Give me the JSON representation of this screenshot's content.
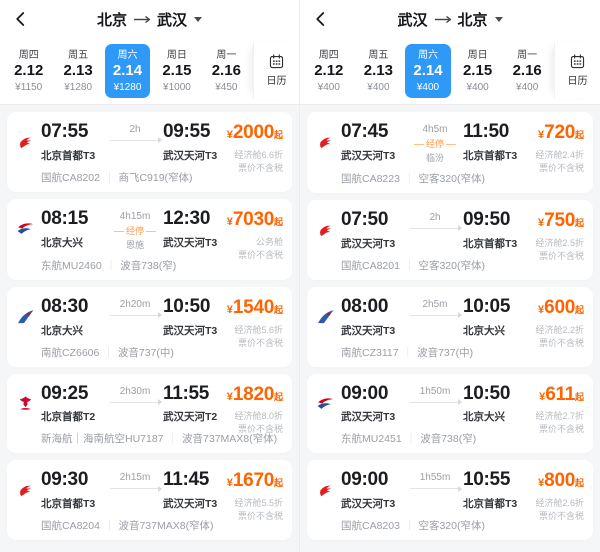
{
  "ui": {
    "separator": "｜",
    "accent_blue": "#2f99f8",
    "price_orange": "#ff6400",
    "stopover_orange": "#ff9b47"
  },
  "panels": [
    {
      "header": {
        "from": "北京",
        "to": "武汉"
      },
      "calendar": {
        "label": "日历"
      },
      "date_tabs": [
        {
          "weekday": "周四",
          "date": "2.12",
          "price": "¥1150",
          "selected": false
        },
        {
          "weekday": "周五",
          "date": "2.13",
          "price": "¥1280",
          "selected": false
        },
        {
          "weekday": "周六",
          "date": "2.14",
          "price": "¥1280",
          "selected": true
        },
        {
          "weekday": "周日",
          "date": "2.15",
          "price": "¥1000",
          "selected": false
        },
        {
          "weekday": "周一",
          "date": "2.16",
          "price": "¥450",
          "selected": false
        }
      ],
      "flights": [
        {
          "airline_icon": "air-china-logo-icon",
          "dep_time": "07:55",
          "duration": "2h",
          "stopover": "",
          "stop_city": "",
          "arr_time": "09:55",
          "dep_airport": "北京首都T3",
          "arr_airport": "武汉天河T3",
          "currency": "¥",
          "price": "2000",
          "price_suffix": "起",
          "cabin": "经济舱6.6折",
          "tax_note": "票价不含税",
          "flight_no": "国航CA8202",
          "aircraft": "商飞C919(窄体)"
        },
        {
          "airline_icon": "china-eastern-logo-icon",
          "dep_time": "08:15",
          "duration": "4h15m",
          "stopover": "经停",
          "stop_city": "恩施",
          "arr_time": "12:30",
          "dep_airport": "北京大兴",
          "arr_airport": "武汉天河T3",
          "currency": "¥",
          "price": "7030",
          "price_suffix": "起",
          "cabin": "公务舱",
          "tax_note": "票价不含税",
          "flight_no": "东航MU2460",
          "aircraft": "波音738(窄)"
        },
        {
          "airline_icon": "china-southern-logo-icon",
          "dep_time": "08:30",
          "duration": "2h20m",
          "stopover": "",
          "stop_city": "",
          "arr_time": "10:50",
          "dep_airport": "北京大兴",
          "arr_airport": "武汉天河T3",
          "currency": "¥",
          "price": "1540",
          "price_suffix": "起",
          "cabin": "经济舱5.6折",
          "tax_note": "票价不含税",
          "flight_no": "南航CZ6606",
          "aircraft": "波音737(中)"
        },
        {
          "airline_icon": "hainan-airlines-logo-icon",
          "dep_time": "09:25",
          "duration": "2h30m",
          "stopover": "",
          "stop_city": "",
          "arr_time": "11:55",
          "dep_airport": "北京首都T2",
          "arr_airport": "武汉天河T2",
          "currency": "¥",
          "price": "1820",
          "price_suffix": "起",
          "cabin": "经济舱8.0折",
          "tax_note": "票价不含税",
          "flight_no": "新海航｜海南航空HU7187",
          "aircraft": "波音737MAX8(窄体)"
        },
        {
          "airline_icon": "air-china-logo-icon",
          "dep_time": "09:30",
          "duration": "2h15m",
          "stopover": "",
          "stop_city": "",
          "arr_time": "11:45",
          "dep_airport": "北京首都T3",
          "arr_airport": "武汉天河T3",
          "currency": "¥",
          "price": "1670",
          "price_suffix": "起",
          "cabin": "经济舱5.5折",
          "tax_note": "票价不含税",
          "flight_no": "国航CA8204",
          "aircraft": "波音737MAX8(窄体)"
        }
      ]
    },
    {
      "header": {
        "from": "武汉",
        "to": "北京"
      },
      "calendar": {
        "label": "日历"
      },
      "date_tabs": [
        {
          "weekday": "周四",
          "date": "2.12",
          "price": "¥400",
          "selected": false
        },
        {
          "weekday": "周五",
          "date": "2.13",
          "price": "¥400",
          "selected": false
        },
        {
          "weekday": "周六",
          "date": "2.14",
          "price": "¥400",
          "selected": true
        },
        {
          "weekday": "周日",
          "date": "2.15",
          "price": "¥400",
          "selected": false
        },
        {
          "weekday": "周一",
          "date": "2.16",
          "price": "¥400",
          "selected": false
        }
      ],
      "flights": [
        {
          "airline_icon": "air-china-logo-icon",
          "dep_time": "07:45",
          "duration": "4h5m",
          "stopover": "经停",
          "stop_city": "临汾",
          "arr_time": "11:50",
          "dep_airport": "武汉天河T3",
          "arr_airport": "北京首都T3",
          "currency": "¥",
          "price": "720",
          "price_suffix": "起",
          "cabin": "经济舱2.4折",
          "tax_note": "票价不含税",
          "flight_no": "国航CA8223",
          "aircraft": "空客320(窄体)"
        },
        {
          "airline_icon": "air-china-logo-icon",
          "dep_time": "07:50",
          "duration": "2h",
          "stopover": "",
          "stop_city": "",
          "arr_time": "09:50",
          "dep_airport": "武汉天河T3",
          "arr_airport": "北京首都T3",
          "currency": "¥",
          "price": "750",
          "price_suffix": "起",
          "cabin": "经济舱2.5折",
          "tax_note": "票价不含税",
          "flight_no": "国航CA8201",
          "aircraft": "空客320(窄体)"
        },
        {
          "airline_icon": "china-southern-logo-icon",
          "dep_time": "08:00",
          "duration": "2h5m",
          "stopover": "",
          "stop_city": "",
          "arr_time": "10:05",
          "dep_airport": "武汉天河T3",
          "arr_airport": "北京大兴",
          "currency": "¥",
          "price": "600",
          "price_suffix": "起",
          "cabin": "经济舱2.2折",
          "tax_note": "票价不含税",
          "flight_no": "南航CZ3117",
          "aircraft": "波音737(中)"
        },
        {
          "airline_icon": "china-eastern-logo-icon",
          "dep_time": "09:00",
          "duration": "1h50m",
          "stopover": "",
          "stop_city": "",
          "arr_time": "10:50",
          "dep_airport": "武汉天河T3",
          "arr_airport": "北京大兴",
          "currency": "¥",
          "price": "611",
          "price_suffix": "起",
          "cabin": "经济舱2.7折",
          "tax_note": "票价不含税",
          "flight_no": "东航MU2451",
          "aircraft": "波音738(窄)"
        },
        {
          "airline_icon": "air-china-logo-icon",
          "dep_time": "09:00",
          "duration": "1h55m",
          "stopover": "",
          "stop_city": "",
          "arr_time": "10:55",
          "dep_airport": "武汉天河T3",
          "arr_airport": "北京首都T3",
          "currency": "¥",
          "price": "800",
          "price_suffix": "起",
          "cabin": "经济舱2.6折",
          "tax_note": "票价不含税",
          "flight_no": "国航CA8203",
          "aircraft": "空客320(窄体)"
        }
      ]
    }
  ]
}
